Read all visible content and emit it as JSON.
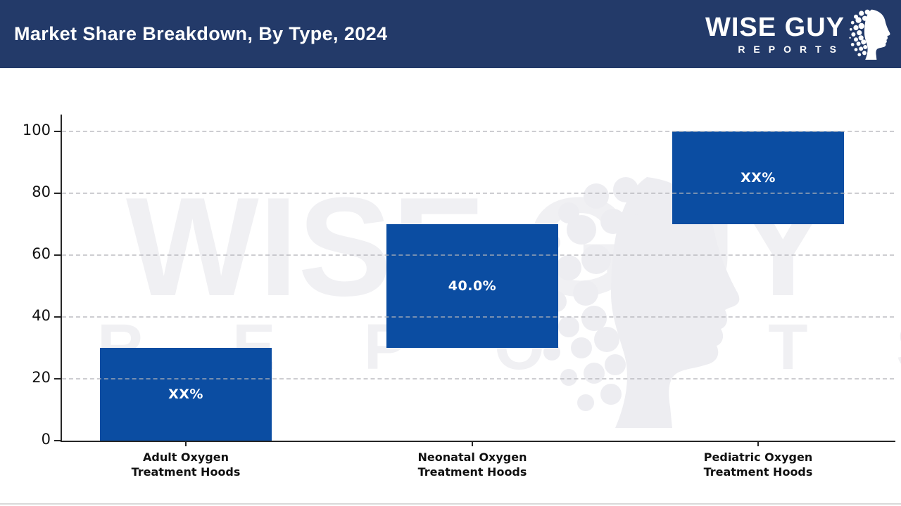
{
  "header": {
    "title": "Market Share Breakdown, By Type, 2024",
    "bg_color": "#233a69",
    "logo": {
      "primary": "WISE GUY",
      "secondary": "REPORTS"
    }
  },
  "watermark": {
    "primary": "WISE GUY",
    "secondary": "R E P O R T S"
  },
  "chart_data": {
    "type": "bar",
    "subtype": "waterfall",
    "title": "Market Share Breakdown, By Type, 2024",
    "categories": [
      "Adult Oxygen Treatment Hoods",
      "Neonatal Oxygen Treatment Hoods",
      "Pediatric Oxygen Treatment Hoods"
    ],
    "bars": [
      {
        "category": "Adult Oxygen Treatment Hoods",
        "label_lines": [
          "Adult Oxygen",
          "Treatment Hoods"
        ],
        "start": 0,
        "end": 30,
        "value": 30,
        "value_label": "XX%"
      },
      {
        "category": "Neonatal Oxygen Treatment Hoods",
        "label_lines": [
          "Neonatal Oxygen",
          "Treatment Hoods"
        ],
        "start": 30,
        "end": 70,
        "value": 40,
        "value_label": "40.0%"
      },
      {
        "category": "Pediatric Oxygen Treatment Hoods",
        "label_lines": [
          "Pediatric Oxygen",
          "Treatment Hoods"
        ],
        "start": 70,
        "end": 100,
        "value": 30,
        "value_label": "XX%"
      }
    ],
    "xlabel": "",
    "ylabel": "",
    "ylim": [
      0,
      100
    ],
    "yticks": [
      0,
      20,
      40,
      60,
      80,
      100
    ],
    "grid": "horizontal-dashed",
    "legend": false,
    "colors": {
      "bar": "#0b4da2",
      "bar_label": "#ffffff",
      "axis": "#262626",
      "grid": "#d9d9d9",
      "header_bg": "#233a69",
      "watermark": "#f0f0f3"
    }
  }
}
